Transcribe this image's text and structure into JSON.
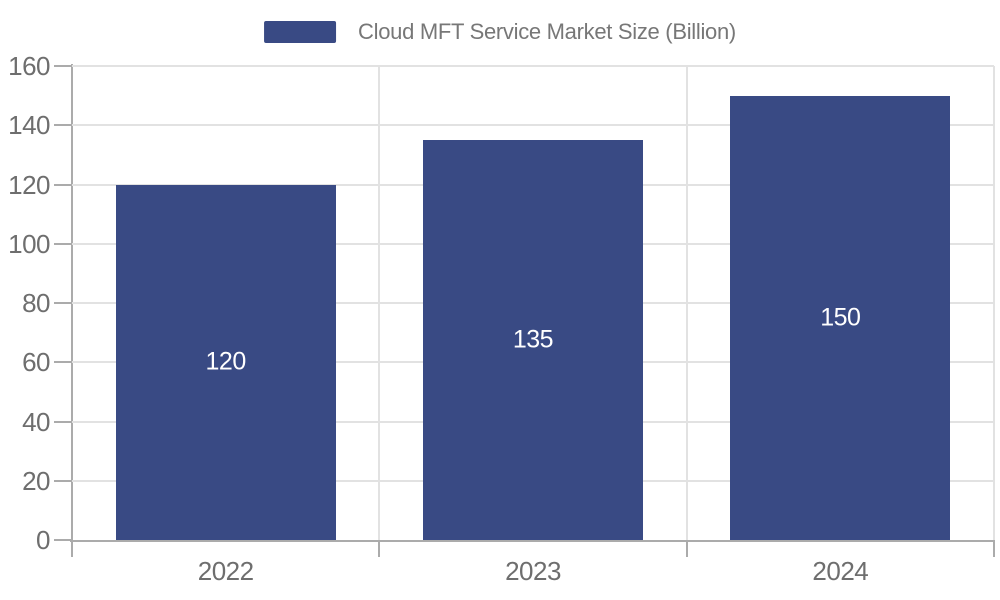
{
  "chart": {
    "legend_label": "Cloud MFT Service Market Size (Billion)"
  },
  "chart_data": {
    "type": "bar",
    "title": "Cloud MFT Service Market Size (Billion)",
    "categories": [
      "2022",
      "2023",
      "2024"
    ],
    "values": [
      120,
      135,
      150
    ],
    "series": [
      {
        "name": "Cloud MFT Service Market Size (Billion)",
        "values": [
          120,
          135,
          150
        ]
      }
    ],
    "xlabel": "",
    "ylabel": "",
    "ylim": [
      0,
      160
    ],
    "ytick_step": 20,
    "yticks": [
      0,
      20,
      40,
      60,
      80,
      100,
      120,
      140,
      160
    ],
    "grid": true,
    "legend_position": "top-center",
    "value_labels": "centered-inside-bars",
    "bar_color": "#394A84",
    "value_label_color": "#FFFFFF",
    "axis_color": "#ABABAB",
    "gridline_color": "#E2E2E2",
    "tick_label_color": "#6E6E6E",
    "legend_text_color": "#777777"
  }
}
